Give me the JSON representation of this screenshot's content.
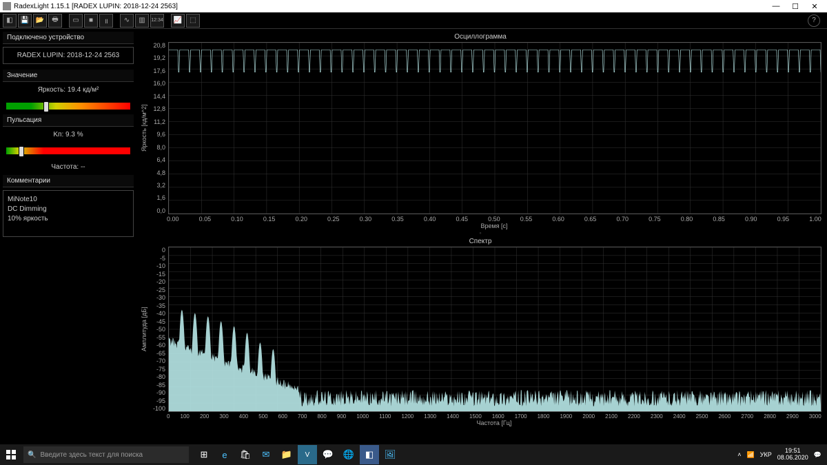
{
  "window": {
    "title": "RadexLight 1.15.1 [RADEX LUPIN: 2018-12-24 2563]",
    "min": "—",
    "max": "☐",
    "close": "✕"
  },
  "toolbar": {
    "help": "?"
  },
  "sidebar": {
    "device_h": "Подключено устройство",
    "device_name": "RADEX LUPIN: 2018-12-24 2563",
    "value_h": "Значение",
    "brightness_label": "Яркость: 19.4 кд/м²",
    "brightness_gauge": {
      "gradient": "linear-gradient(90deg,#00a000 0%,#00a000 20%,#d0d000 40%,#ff9000 60%,#ff0000 100%)",
      "marker_pct": 30
    },
    "pulse_h": "Пульсация",
    "pulse_label": "Kп: 9.3 %",
    "pulse_gauge": {
      "gradient": "linear-gradient(90deg,#00a000 0%,#d0d000 10%,#ff0000 30%,#ff0000 100%)",
      "marker_pct": 10
    },
    "freq_label": "Частота: --",
    "comments_h": "Комментарии",
    "comments": [
      "MiNote10",
      "DC Dimming",
      "10% яркость"
    ]
  },
  "osc": {
    "title": "Осциллограмма",
    "ylabel": "Яркость [кд/м^2]",
    "xlabel": "Время [c]",
    "ylim": [
      0,
      21.5
    ],
    "ytick_step": 1.6,
    "yticks": [
      "20,8",
      "19,2",
      "17,6",
      "16,0",
      "14,4",
      "12,8",
      "11,2",
      "9,6",
      "8,0",
      "6,4",
      "4,8",
      "3,2",
      "1,6",
      "0,0"
    ],
    "xlim": [
      0,
      1.0
    ],
    "xticks": [
      "0.00",
      "0.05",
      "0.10",
      "0.15",
      "0.20",
      "0.25",
      "0.30",
      "0.35",
      "0.40",
      "0.45",
      "0.50",
      "0.55",
      "0.60",
      "0.65",
      "0.70",
      "0.75",
      "0.80",
      "0.85",
      "0.90",
      "0.95",
      "1.00"
    ],
    "trace_color": "#b8e8e8",
    "grid_color": "#333333",
    "waveform": {
      "period": 0.0167,
      "high": 20.6,
      "low": 17.8,
      "duty": 0.82
    }
  },
  "spec": {
    "title": "Спектр",
    "ylabel": "Амплитуда [дБ]",
    "xlabel": "Частота [Гц]",
    "ylim": [
      -100,
      0
    ],
    "ytick_step": 5,
    "yticks": [
      "0",
      "-5",
      "-10",
      "-15",
      "-20",
      "-25",
      "-30",
      "-35",
      "-40",
      "-45",
      "-50",
      "-55",
      "-60",
      "-65",
      "-70",
      "-75",
      "-80",
      "-85",
      "-90",
      "-95",
      "-100"
    ],
    "xlim": [
      0,
      3000
    ],
    "xtick_step": 100,
    "xticks": [
      "0",
      "100",
      "200",
      "300",
      "400",
      "500",
      "600",
      "700",
      "800",
      "900",
      "1000",
      "1100",
      "1200",
      "1300",
      "1400",
      "1500",
      "1600",
      "1700",
      "1800",
      "1900",
      "2000",
      "2100",
      "2200",
      "2300",
      "2400",
      "2500",
      "2600",
      "2700",
      "2800",
      "2900",
      "3000"
    ],
    "trace_color": "#b8e8e8",
    "peaks_hz": [
      60,
      120,
      180,
      240,
      300,
      360,
      420,
      480
    ],
    "peak_db": [
      -38,
      -40,
      -42,
      -45,
      -48,
      -52,
      -58,
      -62
    ],
    "noise_floor_db": -92
  },
  "taskbar": {
    "search_placeholder": "Введите здесь текст для поиска",
    "lang": "УКР",
    "time": "19:51",
    "date": "08.06.2020"
  }
}
